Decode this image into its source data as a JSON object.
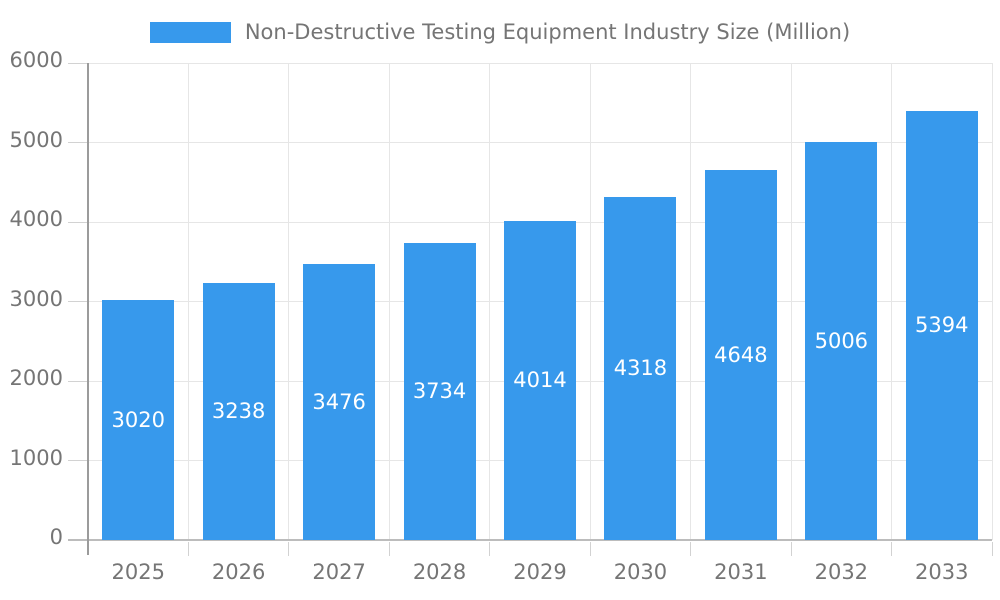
{
  "chart_data": {
    "type": "bar",
    "title": "",
    "xlabel": "",
    "ylabel": "",
    "categories": [
      "2025",
      "2026",
      "2027",
      "2028",
      "2029",
      "2030",
      "2031",
      "2032",
      "2033"
    ],
    "values": [
      3020,
      3238,
      3476,
      3734,
      4014,
      4318,
      4648,
      5006,
      5394
    ],
    "series_name": "Non-Destructive Testing Equipment Industry Size (Million)",
    "ylim": [
      0,
      6000
    ],
    "yticks": [
      0,
      1000,
      2000,
      3000,
      4000,
      5000,
      6000
    ],
    "grid": true,
    "legend_position": "top-center",
    "bar_labels_inside": true,
    "colors": {
      "bar": "#3799ec",
      "bar_label_text": "#ffffff",
      "axis_text": "#757575",
      "gridline": "#e6e6e6",
      "tick": "#d2d2d2",
      "y_axis_line": "#9b9b9b",
      "x_axis_line": "#bcbcbc",
      "background": "#ffffff"
    }
  },
  "legend": {
    "label": "Non-Destructive Testing Equipment Industry Size (Million)"
  }
}
